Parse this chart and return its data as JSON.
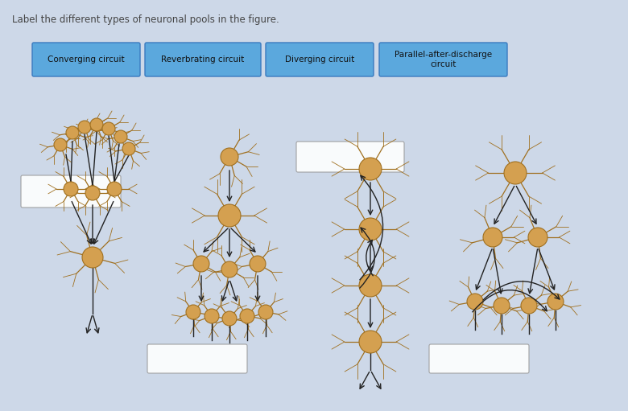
{
  "title": "Label the different types of neuronal pools in the figure.",
  "title_fontsize": 8.5,
  "title_color": "#444444",
  "background_color": "#cdd8e8",
  "button_color": "#5ba8dd",
  "button_text_color": "#111111",
  "button_border_color": "#3a7abf",
  "button_labels": [
    "Converging circuit",
    "Reverbrating circuit",
    "Diverging circuit",
    "Parallel-after-discharge\ncircuit"
  ],
  "soma_color": "#d4a050",
  "soma_edge": "#a07020",
  "axon_color": "#222222",
  "fig_width": 7.8,
  "fig_height": 5.11,
  "dpi": 100
}
